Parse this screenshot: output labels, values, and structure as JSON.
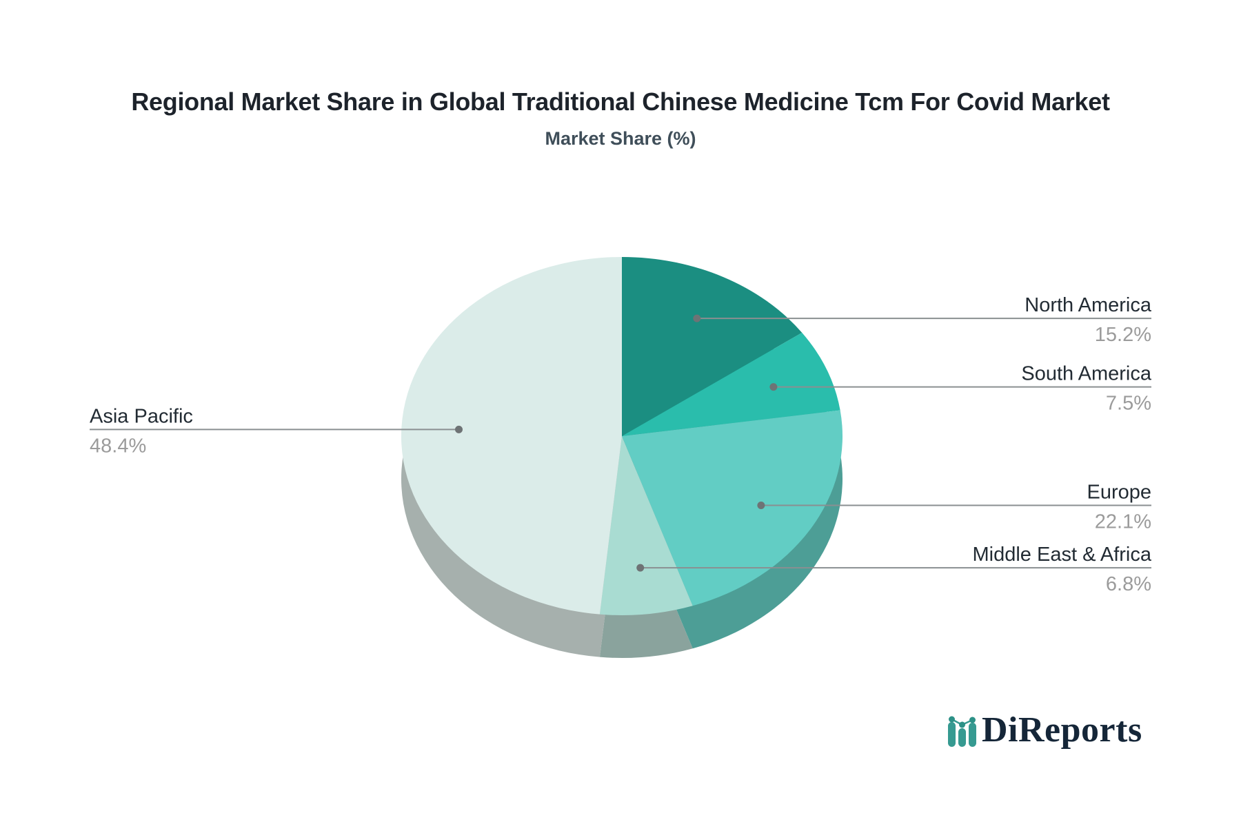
{
  "title": "Regional Market Share in Global Traditional Chinese Medicine Tcm For Covid Market",
  "subtitle": "Market Share (%)",
  "chart_data": {
    "type": "pie",
    "title": "Regional Market Share in Global Traditional Chinese Medicine Tcm For Covid Market",
    "subtitle": "Market Share (%)",
    "unit": "%",
    "direction": "clockwise",
    "start_angle_deg": 0,
    "style": "3d-pie",
    "slices": [
      {
        "label": "North America",
        "value": 15.2,
        "color": "#1b8e81",
        "side_color": "#177a6f"
      },
      {
        "label": "South America",
        "value": 7.5,
        "color": "#2abdac",
        "side_color": "#239c8e"
      },
      {
        "label": "Europe",
        "value": 22.1,
        "color": "#62cdc4",
        "side_color": "#4d9e96"
      },
      {
        "label": "Middle East & Africa",
        "value": 6.8,
        "color": "#a9dcd2",
        "side_color": "#8aa39d"
      },
      {
        "label": "Asia Pacific",
        "value": 48.4,
        "color": "#dbece9",
        "side_color": "#a6b0ad"
      }
    ]
  },
  "labels_style": {
    "name_color": "#222b33",
    "value_color": "#9b9b9b",
    "leader_line_color": "#8a8f91",
    "dot_color": "#6e7375"
  },
  "logo": {
    "text": "DiReports",
    "icon": "bar-line-chart-icon",
    "icon_color": "#369a91",
    "text_color": "#152638"
  }
}
